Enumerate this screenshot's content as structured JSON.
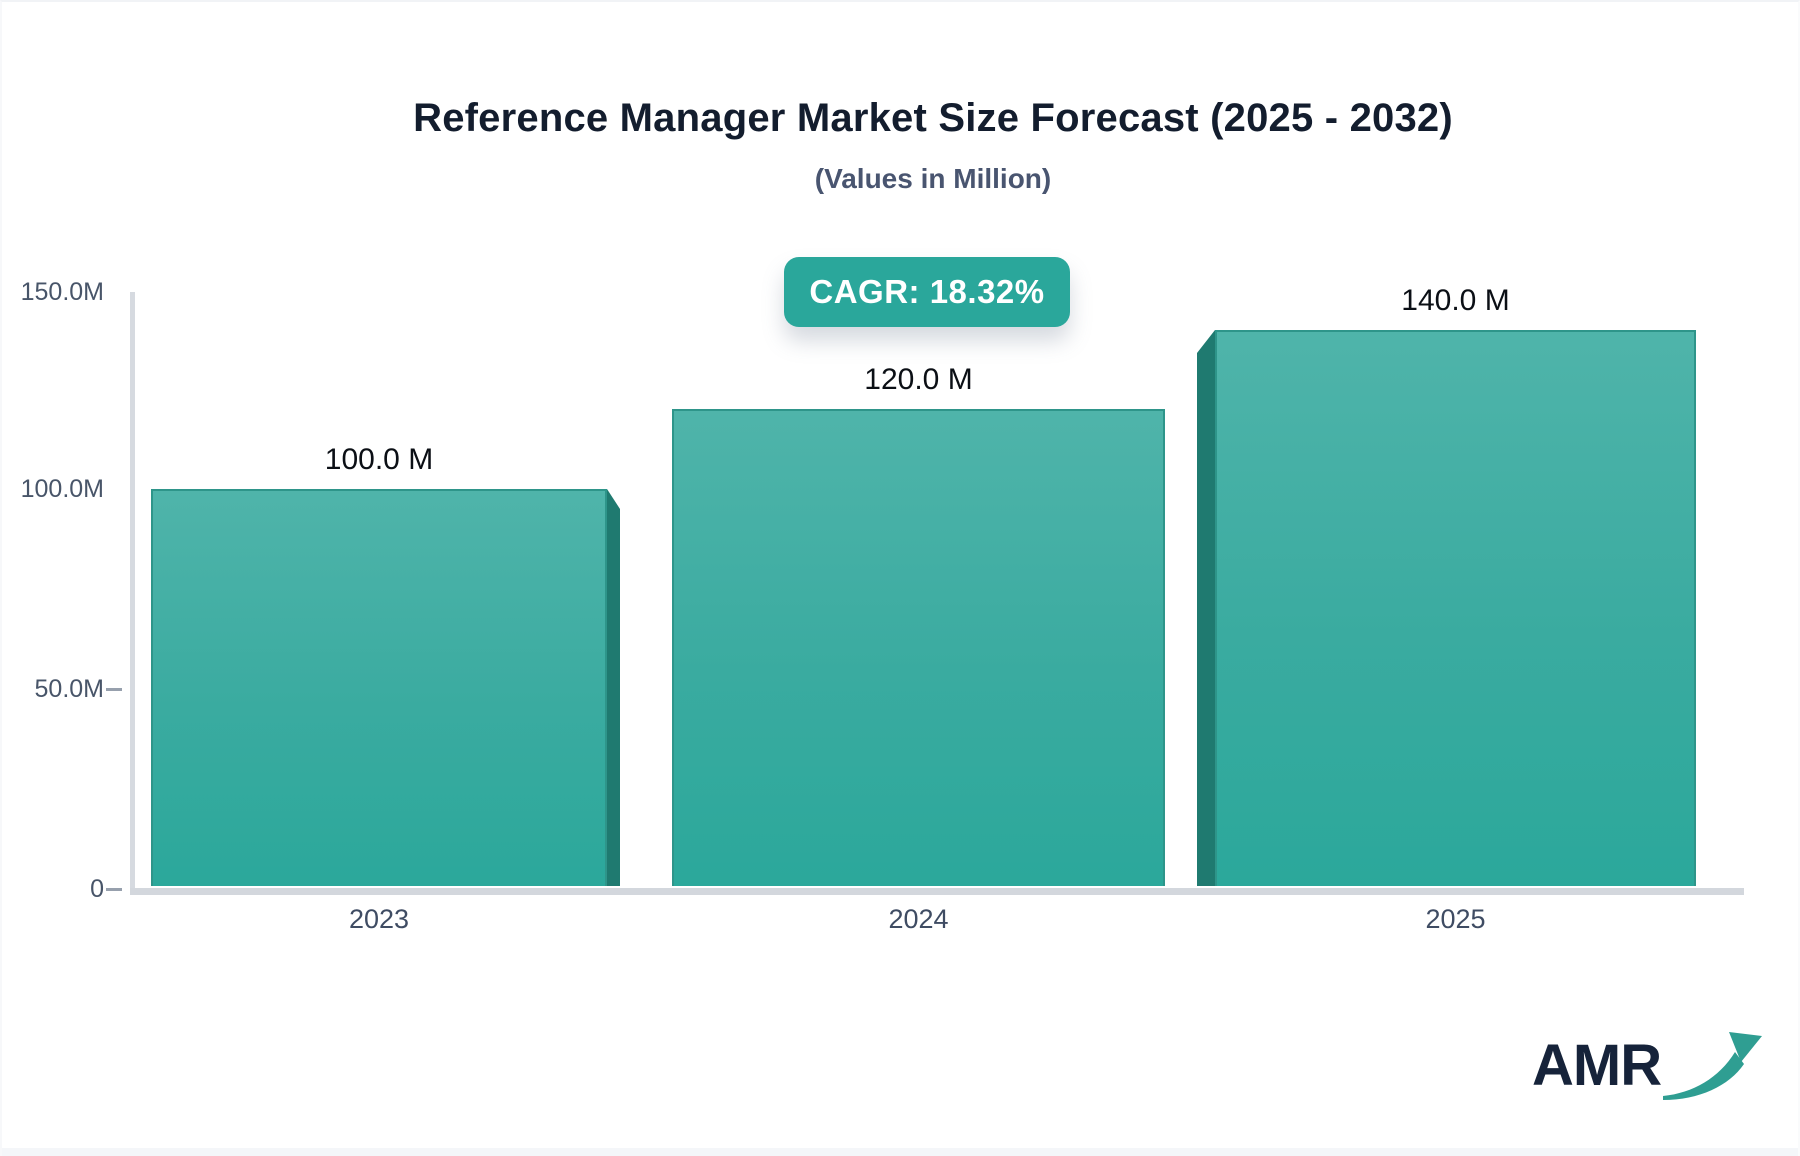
{
  "header": {
    "title": "Reference Manager Market Size Forecast (2025 - 2032)",
    "subtitle": "(Values in Million)"
  },
  "badge": {
    "label": "CAGR: 18.32%",
    "color": "#2aa79b"
  },
  "chart_data": {
    "type": "bar",
    "title": "Reference Manager Market Size Forecast (2025 - 2032)",
    "subtitle": "(Values in Million)",
    "unit": "Million",
    "categories": [
      "2023",
      "2024",
      "2025"
    ],
    "values": [
      100.0,
      120.0,
      140.0
    ],
    "value_labels": [
      "100.0 M",
      "120.0 M",
      "140.0 M"
    ],
    "cagr_percent": 18.32,
    "xlabel": "",
    "ylabel": "",
    "ylim": [
      0,
      150
    ],
    "ytick_labels": [
      "150.0M",
      "100.0M",
      "50.0M",
      "0"
    ],
    "grid": false,
    "legend": false,
    "bar_color_top": "#4fb4aa",
    "bar_color_bottom": "#2ba89b",
    "bar_edge_color": "#2e958a",
    "bevel_color": "#1f7a70",
    "axis_color": "#d6dae0"
  },
  "logo": {
    "text": "AMR",
    "arrow_color": "#2f9e92"
  }
}
